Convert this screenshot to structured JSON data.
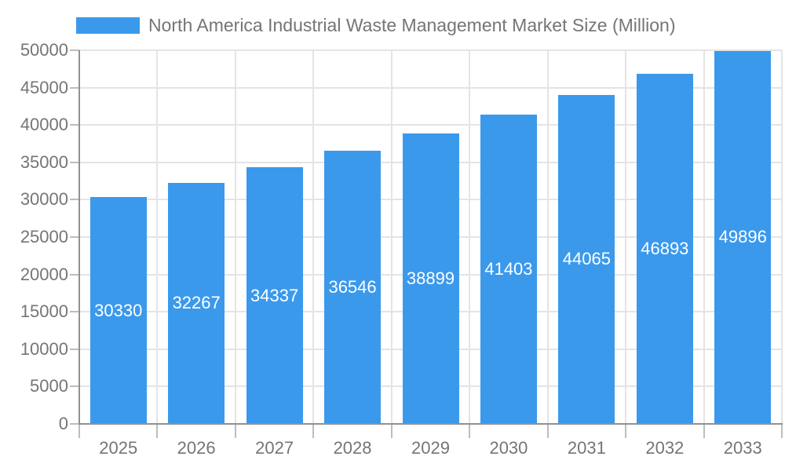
{
  "chart_data": {
    "type": "bar",
    "title": "North America Industrial Waste Management Market Size (Million)",
    "legend": {
      "position": "top",
      "label": "North America Industrial Waste Management Market Size (Million)"
    },
    "categories": [
      "2025",
      "2026",
      "2027",
      "2028",
      "2029",
      "2030",
      "2031",
      "2032",
      "2033"
    ],
    "values": [
      30330,
      32267,
      34337,
      36546,
      38899,
      41403,
      44065,
      46893,
      49896
    ],
    "value_labels_shown": true,
    "xlabel": "",
    "ylabel": "",
    "ylim": [
      0,
      50000
    ],
    "ytick_step": 5000,
    "yticks": [
      0,
      5000,
      10000,
      15000,
      20000,
      25000,
      30000,
      35000,
      40000,
      45000,
      50000
    ],
    "grid": true,
    "colors": {
      "bar": "#3B99EC",
      "grid": "#E4E4E4",
      "axis": "#919191",
      "tick": "#BDBDBD",
      "label": "#757575",
      "value_label": "#FFFFFF",
      "background": "#FFFFFF"
    }
  }
}
